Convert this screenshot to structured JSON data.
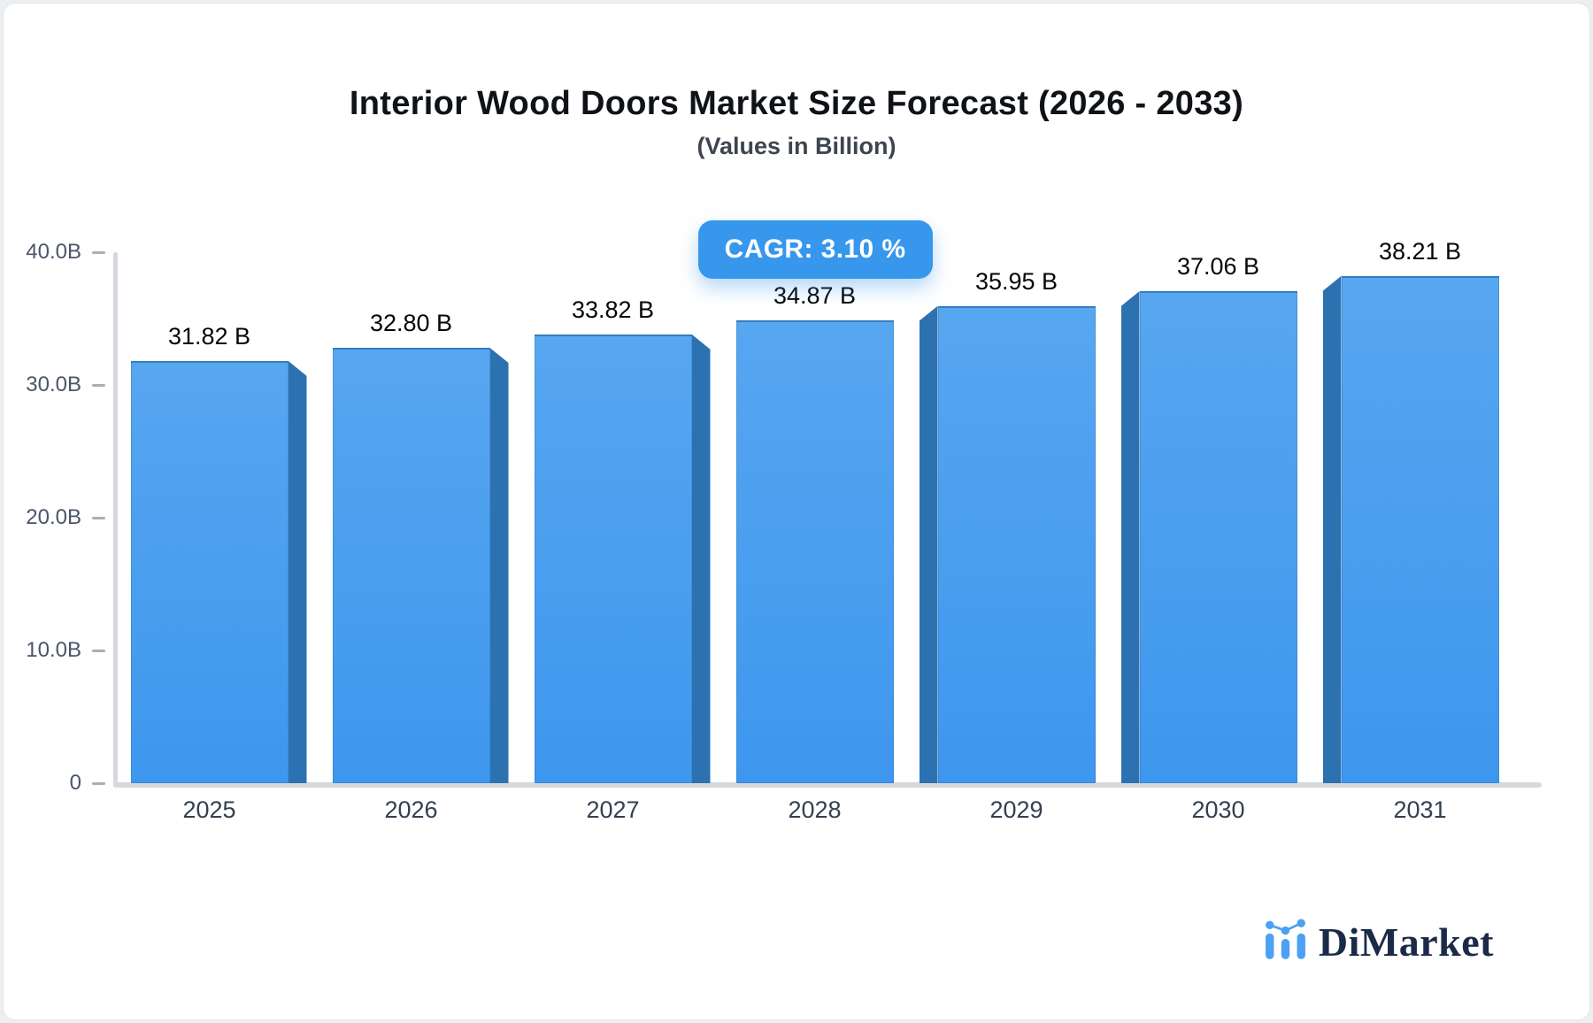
{
  "header": {
    "title": "Interior Wood Doors Market Size Forecast (2026 - 2033)",
    "subtitle": "(Values in Billion)"
  },
  "badge": {
    "label": "CAGR: 3.10 %"
  },
  "chart_data": {
    "type": "bar",
    "title": "Interior Wood Doors Market Size Forecast (2026 - 2033)",
    "subtitle": "(Values in Billion)",
    "unit": "Billion",
    "categories": [
      "2025",
      "2026",
      "2027",
      "2028",
      "2029",
      "2030",
      "2031"
    ],
    "values": [
      31.82,
      32.8,
      33.82,
      34.87,
      35.95,
      37.06,
      38.21
    ],
    "value_labels": [
      "31.82 B",
      "32.80 B",
      "33.82 B",
      "34.87 B",
      "35.95 B",
      "37.06 B",
      "38.21 B"
    ],
    "cagr_annotation": "CAGR: 3.10 %",
    "ylim": [
      0,
      40
    ],
    "yticks": [
      0,
      10,
      20,
      30,
      40
    ],
    "ytick_labels": [
      "0",
      "10.0B",
      "20.0B",
      "30.0B",
      "40.0B"
    ],
    "grid": false,
    "legend": "none",
    "colors": {
      "bar_top": "#57a6f0",
      "bar_bottom": "#3e97ee",
      "bar_side": "#2d72b0",
      "badge_background": "#3797ec",
      "badge_text": "#ffffff",
      "axis_line": "#d5d8dd"
    }
  },
  "footer": {
    "brand": "DiMarket"
  }
}
